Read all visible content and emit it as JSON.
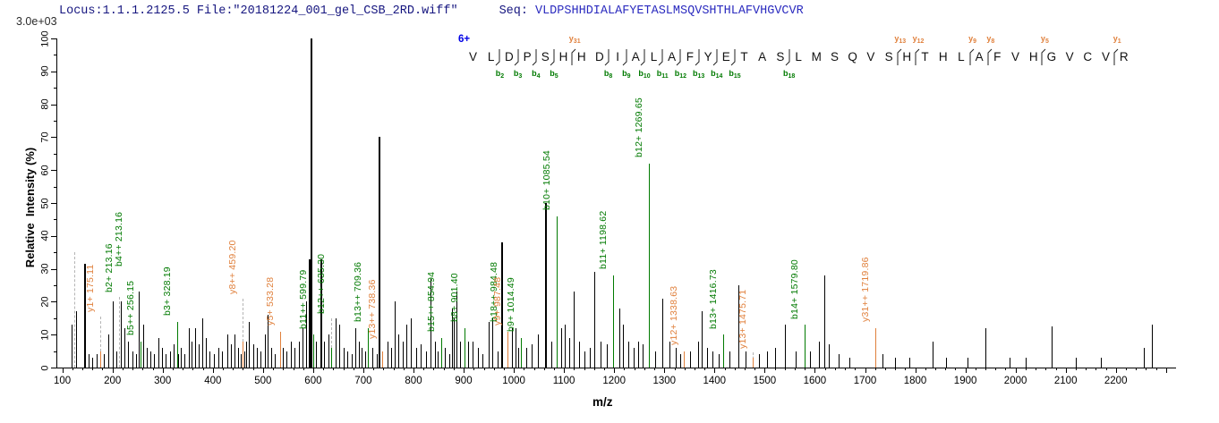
{
  "header": {
    "locus_file": "Locus:1.1.1.2125.5 File:\"20181224_001_gel_CSB_2RD.wiff\"",
    "seq_label": "Seq:",
    "seq_value": "VLDPSHHDIALAFYETASLMSQVSHTHLAFVHGVCVR"
  },
  "colors": {
    "b_ion": "#007A00",
    "y_ion": "#E0803C",
    "peak": "#000000",
    "dash": "#B4B4B4",
    "locus_navy": "#15157F",
    "seq_blue": "#2B2BBF",
    "charge_blue": "#0000E6"
  },
  "chart_data": {
    "type": "bar",
    "subtype": "ms2-peptide-fragmentation-spectrum",
    "title": "",
    "xlabel": "m/z",
    "ylabel": "Relative  Intensity (%)",
    "y_scale_label": "3.0e+03",
    "xlim": [
      90,
      2320
    ],
    "ylim": [
      0,
      100
    ],
    "x_major_tick_step": 100,
    "x_minor_tick_step": 20,
    "y_major_tick_step": 10,
    "y_minor_tick_step": 5,
    "x_tick_labels": [
      100,
      200,
      300,
      400,
      500,
      600,
      700,
      800,
      900,
      1000,
      1100,
      1200,
      1300,
      1400,
      1500,
      1600,
      1700,
      1800,
      1900,
      2000,
      2100,
      2200
    ],
    "y_tick_labels": [
      0,
      10,
      20,
      30,
      40,
      50,
      60,
      70,
      80,
      90,
      100
    ],
    "legend": "none",
    "grid": "off",
    "precursor_charge": "6+",
    "peptide": "VLDPSHHDIALAFYETASLMSQVSHTHLAFVHGVCVR",
    "b_ion_cleavages": [
      {
        "label": "b2",
        "pos": 2
      },
      {
        "label": "b3",
        "pos": 3
      },
      {
        "label": "b4",
        "pos": 4
      },
      {
        "label": "b5",
        "pos": 5
      },
      {
        "label": "b8",
        "pos": 8
      },
      {
        "label": "b9",
        "pos": 9
      },
      {
        "label": "b10",
        "pos": 10
      },
      {
        "label": "b11",
        "pos": 11
      },
      {
        "label": "b12",
        "pos": 12
      },
      {
        "label": "b13",
        "pos": 13
      },
      {
        "label": "b14",
        "pos": 14
      },
      {
        "label": "b15",
        "pos": 15
      },
      {
        "label": "b18",
        "pos": 18
      }
    ],
    "y_ion_cleavages": [
      {
        "label": "y31",
        "pos": 6
      },
      {
        "label": "y13",
        "pos": 24
      },
      {
        "label": "y12",
        "pos": 25
      },
      {
        "label": "y9",
        "pos": 28
      },
      {
        "label": "y8",
        "pos": 29
      },
      {
        "label": "y5",
        "pos": 32
      },
      {
        "label": "y1",
        "pos": 36
      }
    ],
    "labeled_peaks": [
      {
        "text": "y1+ 175.11",
        "mz": 175.11,
        "line_pct": 5,
        "label_at_pct": 16,
        "ion": "y"
      },
      {
        "text": "b2+ 213.16",
        "mz": 213.16,
        "line_pct": 0,
        "label_at_pct": 22,
        "ion": "b",
        "no_line": true
      },
      {
        "text": "b4++ 213.16",
        "mz": 213.16,
        "line_pct": 0,
        "label_at_pct": 30,
        "ion": "b",
        "dx": 11,
        "no_line": true
      },
      {
        "text": "b5++ 256.15",
        "mz": 256.15,
        "line_pct": 8,
        "label_at_pct": 9,
        "ion": "b"
      },
      {
        "text": "b3+ 328.19",
        "mz": 328.19,
        "line_pct": 14,
        "label_at_pct": 15,
        "ion": "b"
      },
      {
        "text": "y8++ 459.20",
        "mz": 459.2,
        "line_pct": 8,
        "label_at_pct": 21.5,
        "ion": "y"
      },
      {
        "text": "y5+ 533.28",
        "mz": 533.28,
        "line_pct": 11,
        "label_at_pct": 12,
        "ion": "y"
      },
      {
        "text": "b11++ 599.79",
        "mz": 599.79,
        "line_pct": 10,
        "label_at_pct": 11,
        "ion": "b"
      },
      {
        "text": "b12++ 635.30",
        "mz": 635.3,
        "line_pct": 6,
        "label_at_pct": 15.5,
        "ion": "b"
      },
      {
        "text": "b13++ 709.36",
        "mz": 709.36,
        "line_pct": 12,
        "label_at_pct": 13,
        "ion": "b"
      },
      {
        "text": "y13++ 738.36",
        "mz": 738.36,
        "line_pct": 5,
        "label_at_pct": 8,
        "ion": "y"
      },
      {
        "text": "b15++ 854.94",
        "mz": 854.94,
        "line_pct": 9,
        "label_at_pct": 10,
        "ion": "b"
      },
      {
        "text": "b8+ 901.40",
        "mz": 901.4,
        "line_pct": 12,
        "label_at_pct": 13,
        "ion": "b"
      },
      {
        "text": "b18++ 984.48",
        "mz": 984.48,
        "line_pct": 0,
        "label_at_pct": 13,
        "ion": "b",
        "dx": -2,
        "no_line": true
      },
      {
        "text": "y9+ 987.48",
        "mz": 987.48,
        "line_pct": 11,
        "label_at_pct": 12,
        "ion": "y"
      },
      {
        "text": "b9+ 1014.49",
        "mz": 1014.49,
        "line_pct": 9,
        "label_at_pct": 10,
        "ion": "b"
      },
      {
        "text": "b10+ 1085.54",
        "mz": 1085.54,
        "line_pct": 46,
        "label_at_pct": 47,
        "ion": "b"
      },
      {
        "text": "b11+ 1198.62",
        "mz": 1198.62,
        "line_pct": 28,
        "label_at_pct": 29,
        "ion": "b"
      },
      {
        "text": "b12+ 1269.65",
        "mz": 1269.65,
        "line_pct": 62,
        "label_at_pct": 63,
        "ion": "b"
      },
      {
        "text": "y12+ 1338.63",
        "mz": 1338.63,
        "line_pct": 5,
        "label_at_pct": 6,
        "ion": "y"
      },
      {
        "text": "b13+ 1416.73",
        "mz": 1416.73,
        "line_pct": 10,
        "label_at_pct": 11,
        "ion": "b"
      },
      {
        "text": "y13+ 1475.71",
        "mz": 1475.71,
        "line_pct": 3,
        "label_at_pct": 5,
        "ion": "y"
      },
      {
        "text": "b14+ 1579.80",
        "mz": 1579.8,
        "line_pct": 13,
        "label_at_pct": 14,
        "ion": "b"
      },
      {
        "text": "y31++ 1719.86",
        "mz": 1719.86,
        "line_pct": 12,
        "label_at_pct": 13,
        "ion": "y"
      }
    ],
    "dashed_lines": [
      {
        "mz": 124,
        "from_pct": 0,
        "to_pct": 35
      },
      {
        "mz": 175.11,
        "from_pct": 5,
        "to_pct": 15.5
      },
      {
        "mz": 213.16,
        "from_pct": 0,
        "to_pct": 21.5
      },
      {
        "mz": 459.2,
        "from_pct": 8,
        "to_pct": 21
      },
      {
        "mz": 635.3,
        "from_pct": 6,
        "to_pct": 15
      },
      {
        "mz": 1475.71,
        "from_pct": 0,
        "to_pct": 4.5
      }
    ],
    "background_peaks": [
      [
        119,
        13
      ],
      [
        127,
        17
      ],
      [
        144,
        31.5
      ],
      [
        152,
        4
      ],
      [
        160,
        3
      ],
      [
        168,
        4
      ],
      [
        183,
        4
      ],
      [
        192,
        10
      ],
      [
        200,
        20
      ],
      [
        207,
        5
      ],
      [
        216,
        20
      ],
      [
        224,
        12
      ],
      [
        231,
        8
      ],
      [
        239,
        5
      ],
      [
        247,
        4
      ],
      [
        253,
        23
      ],
      [
        262,
        13
      ],
      [
        268,
        6
      ],
      [
        275,
        5
      ],
      [
        283,
        4
      ],
      [
        291,
        9
      ],
      [
        298,
        6
      ],
      [
        306,
        4
      ],
      [
        315,
        5
      ],
      [
        322,
        7
      ],
      [
        330,
        4
      ],
      [
        336,
        6
      ],
      [
        344,
        4
      ],
      [
        352,
        12
      ],
      [
        358,
        8
      ],
      [
        364,
        12
      ],
      [
        371,
        7
      ],
      [
        379,
        15
      ],
      [
        386,
        9
      ],
      [
        394,
        5
      ],
      [
        403,
        4
      ],
      [
        411,
        6
      ],
      [
        419,
        5
      ],
      [
        428,
        10
      ],
      [
        436,
        7
      ],
      [
        444,
        10
      ],
      [
        451,
        6
      ],
      [
        456,
        4
      ],
      [
        463,
        5
      ],
      [
        466,
        8
      ],
      [
        472,
        14
      ],
      [
        480,
        7
      ],
      [
        488,
        6
      ],
      [
        495,
        5
      ],
      [
        503,
        10
      ],
      [
        509,
        16
      ],
      [
        517,
        6
      ],
      [
        524,
        4
      ],
      [
        540,
        6
      ],
      [
        547,
        5
      ],
      [
        556,
        8
      ],
      [
        563,
        6
      ],
      [
        571,
        8
      ],
      [
        578,
        12
      ],
      [
        586,
        20
      ],
      [
        591,
        33
      ],
      [
        595,
        100
      ],
      [
        605,
        8
      ],
      [
        614,
        33
      ],
      [
        622,
        8
      ],
      [
        630,
        10
      ],
      [
        645,
        15
      ],
      [
        652,
        13
      ],
      [
        660,
        6
      ],
      [
        668,
        5
      ],
      [
        676,
        4
      ],
      [
        684,
        12
      ],
      [
        691,
        8
      ],
      [
        697,
        6
      ],
      [
        704,
        5
      ],
      [
        718,
        6
      ],
      [
        726,
        4
      ],
      [
        730,
        70
      ],
      [
        748,
        8
      ],
      [
        756,
        6
      ],
      [
        763,
        20
      ],
      [
        770,
        10
      ],
      [
        778,
        8
      ],
      [
        786,
        13
      ],
      [
        794,
        15
      ],
      [
        805,
        6
      ],
      [
        815,
        7
      ],
      [
        825,
        5
      ],
      [
        834,
        27
      ],
      [
        842,
        8
      ],
      [
        849,
        5
      ],
      [
        862,
        6
      ],
      [
        871,
        4
      ],
      [
        876,
        18
      ],
      [
        881,
        15
      ],
      [
        886,
        23
      ],
      [
        892,
        8
      ],
      [
        908,
        8
      ],
      [
        918,
        8
      ],
      [
        928,
        6
      ],
      [
        938,
        4
      ],
      [
        949,
        14
      ],
      [
        957,
        15
      ],
      [
        968,
        5
      ],
      [
        975,
        38
      ],
      [
        996,
        12
      ],
      [
        1003,
        12
      ],
      [
        1009,
        6
      ],
      [
        1025,
        6
      ],
      [
        1035,
        7
      ],
      [
        1048,
        10
      ],
      [
        1062,
        50
      ],
      [
        1075,
        8
      ],
      [
        1095,
        12
      ],
      [
        1101,
        13
      ],
      [
        1110,
        9
      ],
      [
        1119,
        23
      ],
      [
        1130,
        8
      ],
      [
        1141,
        5
      ],
      [
        1152,
        6
      ],
      [
        1160,
        29
      ],
      [
        1172,
        8
      ],
      [
        1185,
        7
      ],
      [
        1210,
        18
      ],
      [
        1218,
        13
      ],
      [
        1228,
        8
      ],
      [
        1238,
        6
      ],
      [
        1248,
        8
      ],
      [
        1256,
        7
      ],
      [
        1281,
        5
      ],
      [
        1296,
        21
      ],
      [
        1310,
        8
      ],
      [
        1322,
        6
      ],
      [
        1332,
        4
      ],
      [
        1352,
        5
      ],
      [
        1368,
        8
      ],
      [
        1375,
        17
      ],
      [
        1385,
        6
      ],
      [
        1395,
        5
      ],
      [
        1408,
        4
      ],
      [
        1430,
        5
      ],
      [
        1448,
        25
      ],
      [
        1461,
        5
      ],
      [
        1488,
        4
      ],
      [
        1505,
        5
      ],
      [
        1521,
        6
      ],
      [
        1540,
        13
      ],
      [
        1562,
        5
      ],
      [
        1591,
        5
      ],
      [
        1608,
        8
      ],
      [
        1618,
        28
      ],
      [
        1628,
        7
      ],
      [
        1648,
        4
      ],
      [
        1668,
        3
      ],
      [
        1735,
        4
      ],
      [
        1760,
        3
      ],
      [
        1788,
        3
      ],
      [
        1835,
        8
      ],
      [
        1862,
        3
      ],
      [
        1905,
        3
      ],
      [
        1940,
        12
      ],
      [
        1988,
        3
      ],
      [
        2020,
        3
      ],
      [
        2072,
        12.5
      ],
      [
        2120,
        3
      ],
      [
        2170,
        3
      ],
      [
        2256,
        6
      ],
      [
        2272,
        13
      ]
    ]
  }
}
